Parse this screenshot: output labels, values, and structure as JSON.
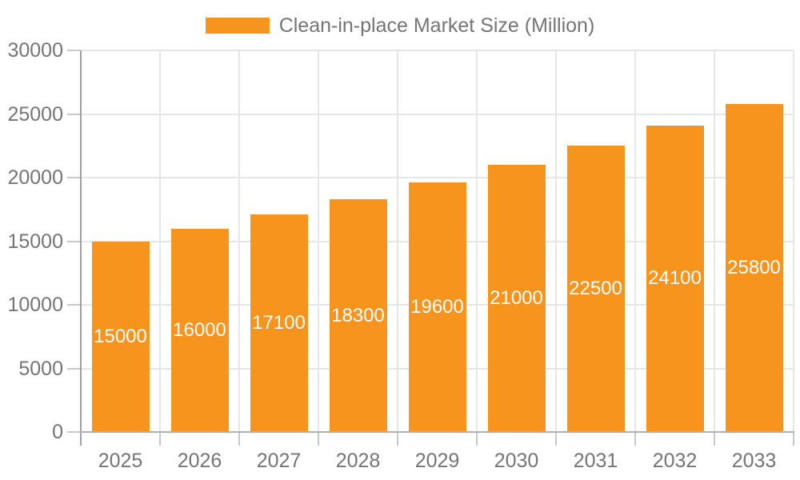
{
  "chart_data": {
    "type": "bar",
    "title": "",
    "legend": {
      "label": "Clean-in-place Market Size (Million)",
      "position": "top-center",
      "swatch_color": "#F7941E"
    },
    "categories": [
      "2025",
      "2026",
      "2027",
      "2028",
      "2029",
      "2030",
      "2031",
      "2032",
      "2033"
    ],
    "series": [
      {
        "name": "Clean-in-place Market Size (Million)",
        "values": [
          15000,
          16000,
          17100,
          18300,
          19600,
          21000,
          22500,
          24100,
          25800
        ]
      }
    ],
    "xlabel": "",
    "ylabel": "",
    "ylim": [
      0,
      30000
    ],
    "yticks": [
      0,
      5000,
      10000,
      15000,
      20000,
      25000,
      30000
    ],
    "grid": true,
    "legend_position": "top-center",
    "colors": {
      "bar": "#F7941E",
      "value_label": "#FFFFFF",
      "axis_text": "#757575",
      "y_axis_line": "#A0A0A0",
      "x_axis_line": "#B0B0B0",
      "tick": "#C8C8C8",
      "gridline": "#E6E6E6",
      "background": "#FFFFFF"
    }
  }
}
